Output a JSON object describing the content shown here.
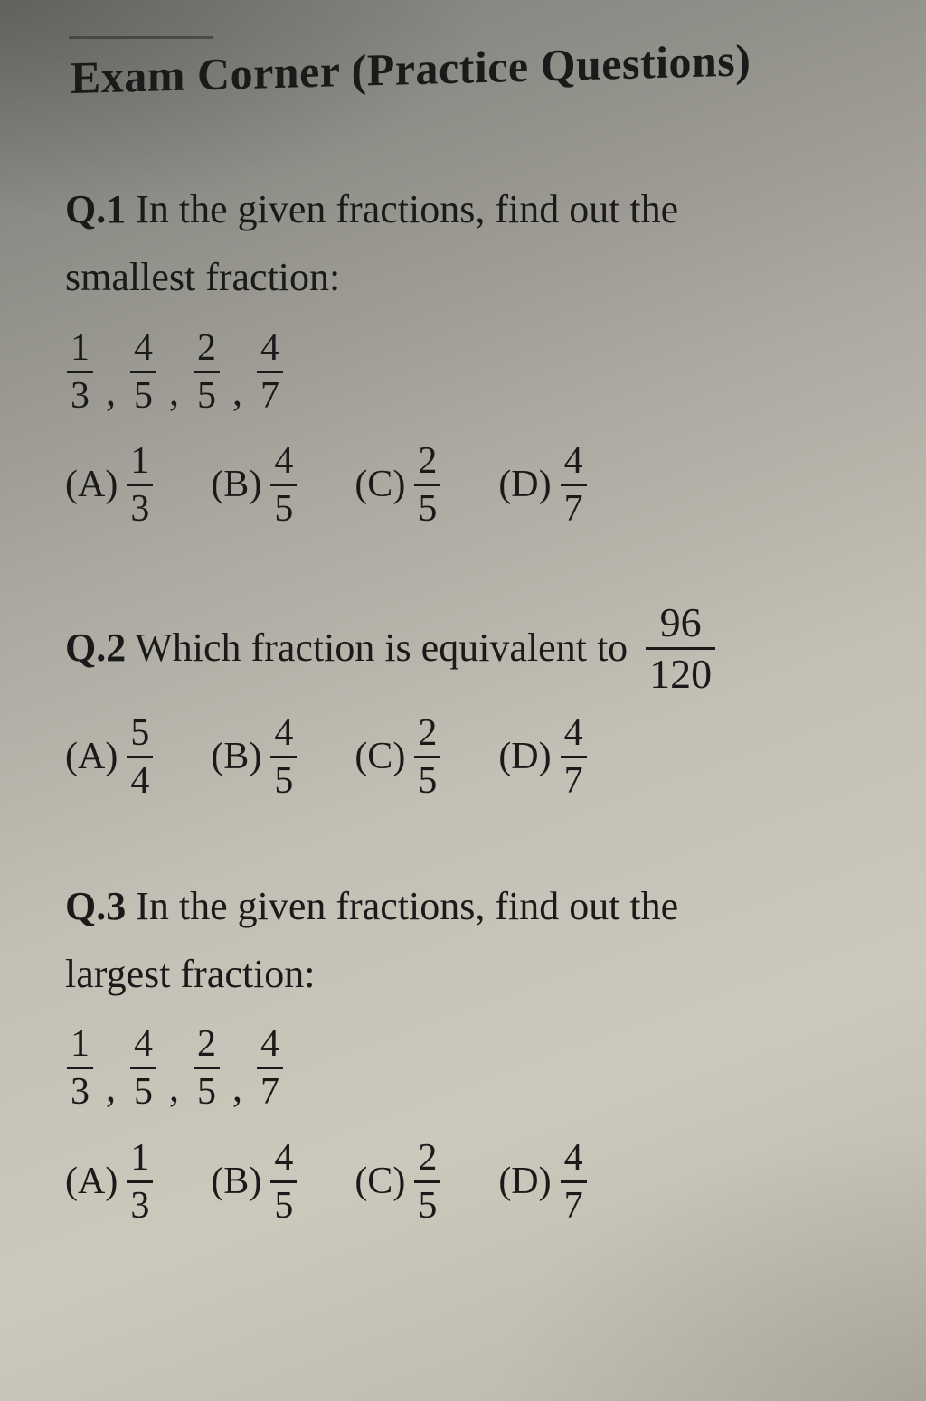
{
  "heading": "Exam Corner (Practice Questions)",
  "q1": {
    "number": "Q.1",
    "text_a": "In the given fractions, find out the",
    "text_b": "smallest fraction:",
    "fractions": [
      {
        "n": "1",
        "d": "3"
      },
      {
        "n": "4",
        "d": "5"
      },
      {
        "n": "2",
        "d": "5"
      },
      {
        "n": "4",
        "d": "7"
      }
    ],
    "options": {
      "A": {
        "n": "1",
        "d": "3"
      },
      "B": {
        "n": "4",
        "d": "5"
      },
      "C": {
        "n": "2",
        "d": "5"
      },
      "D": {
        "n": "4",
        "d": "7"
      }
    }
  },
  "q2": {
    "number": "Q.2",
    "text": "Which fraction is equivalent to",
    "rhs": {
      "n": "96",
      "d": "120"
    },
    "options": {
      "A": {
        "n": "5",
        "d": "4"
      },
      "B": {
        "n": "4",
        "d": "5"
      },
      "C": {
        "n": "2",
        "d": "5"
      },
      "D": {
        "n": "4",
        "d": "7"
      }
    }
  },
  "q3": {
    "number": "Q.3",
    "text_a": "In the given fractions, find out the",
    "text_b": "largest fraction:",
    "fractions": [
      {
        "n": "1",
        "d": "3"
      },
      {
        "n": "4",
        "d": "5"
      },
      {
        "n": "2",
        "d": "5"
      },
      {
        "n": "4",
        "d": "7"
      }
    ],
    "options": {
      "A": {
        "n": "1",
        "d": "3"
      },
      "B": {
        "n": "4",
        "d": "5"
      },
      "C": {
        "n": "2",
        "d": "5"
      },
      "D": {
        "n": "4",
        "d": "7"
      }
    }
  },
  "labels": {
    "A": "(A)",
    "B": "(B)",
    "C": "(C)",
    "D": "(D)"
  },
  "comma": ","
}
